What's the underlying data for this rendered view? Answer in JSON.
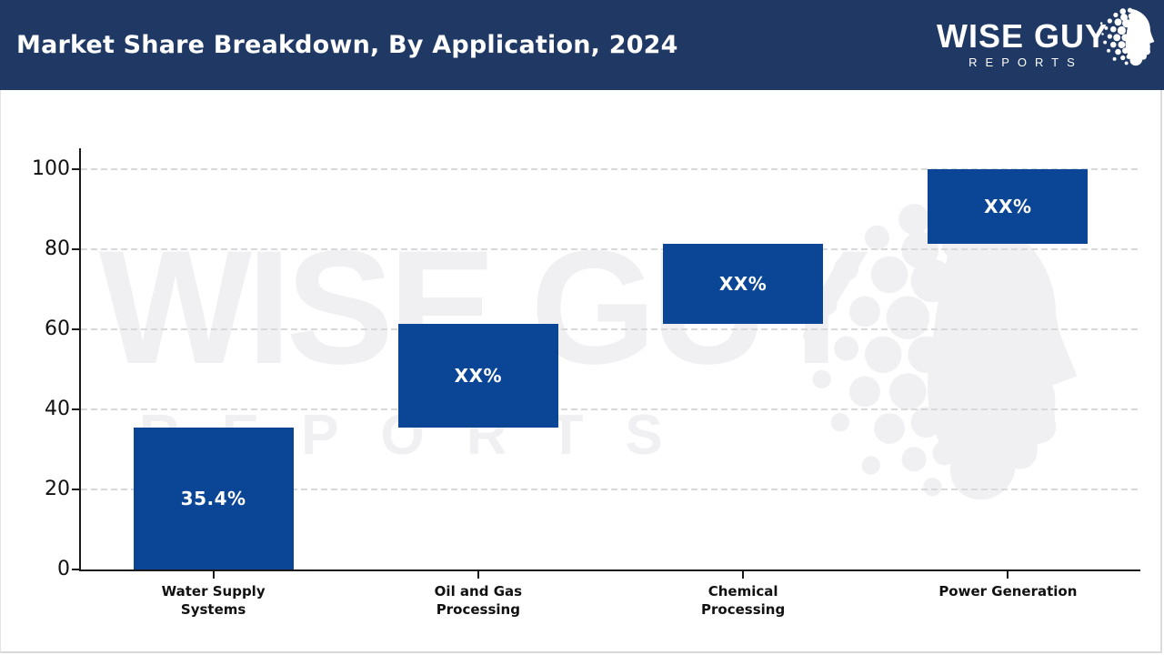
{
  "header": {
    "title": "Market Share Breakdown, By Application, 2024",
    "logo": {
      "line1": "WISE GUY",
      "line2": "REPORTS"
    }
  },
  "watermark": {
    "line1": "WISE GUY",
    "line2": "REPORTS"
  },
  "colors": {
    "header_bg": "#1f3864",
    "bar": "#0a4596",
    "gridline": "#d9d9d9",
    "axis": "#1a1a1a",
    "watermark": "#f0f0f3",
    "bar_label": "#ffffff"
  },
  "chart_data": {
    "type": "bar",
    "subtype": "waterfall",
    "title": "Market Share Breakdown, By Application, 2024",
    "xlabel": "",
    "ylabel": "",
    "ylim": [
      0,
      100
    ],
    "yticks": [
      0,
      20,
      40,
      60,
      80,
      100
    ],
    "grid": "horizontal-dashed",
    "legend": "none",
    "categories": [
      {
        "name": "Water Supply Systems",
        "lines": [
          "Water Supply",
          "Systems"
        ]
      },
      {
        "name": "Oil and Gas Processing",
        "lines": [
          "Oil and Gas",
          "Processing"
        ]
      },
      {
        "name": "Chemical Processing",
        "lines": [
          "Chemical",
          "Processing"
        ]
      },
      {
        "name": "Power Generation",
        "lines": [
          "Power Generation"
        ]
      }
    ],
    "segments": [
      {
        "category": "Water Supply Systems",
        "start": 0,
        "end": 35.4,
        "label": "35.4%"
      },
      {
        "category": "Oil and Gas Processing",
        "start": 35.4,
        "end": 61.4,
        "label": "XX%"
      },
      {
        "category": "Chemical Processing",
        "start": 61.4,
        "end": 81.4,
        "label": "XX%"
      },
      {
        "category": "Power Generation",
        "start": 81.4,
        "end": 100,
        "label": "XX%"
      }
    ]
  }
}
